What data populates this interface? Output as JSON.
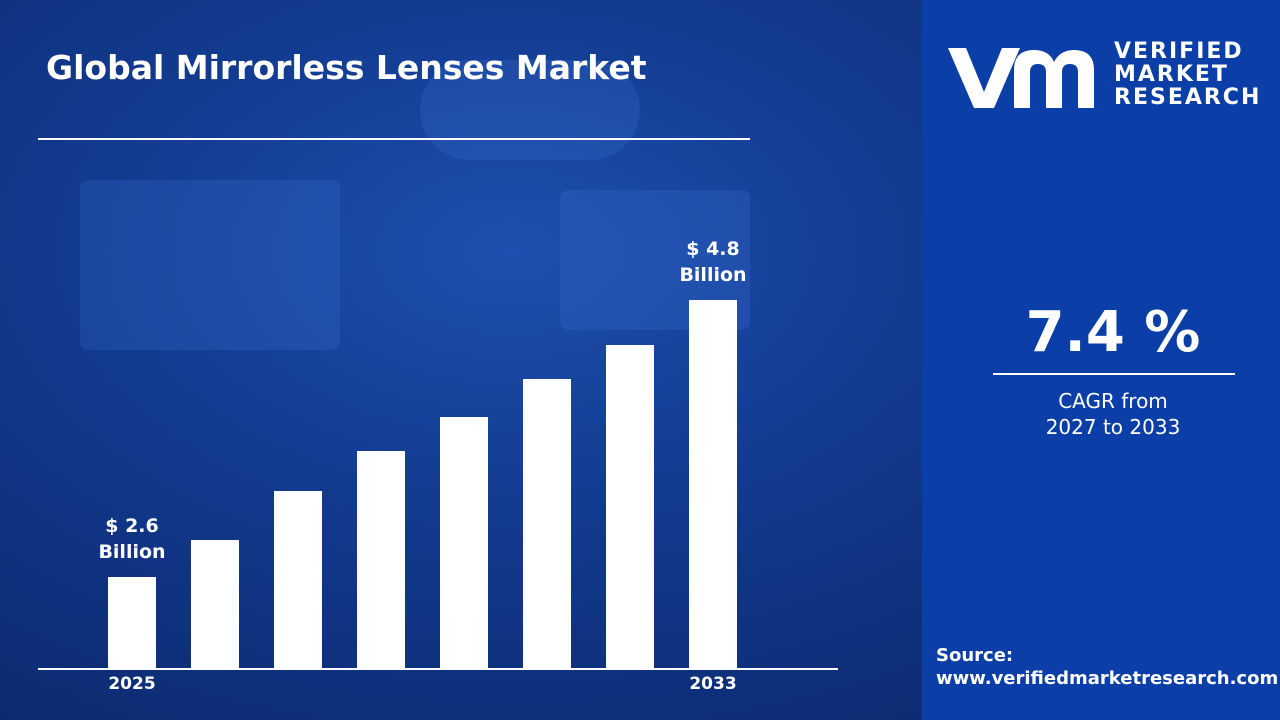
{
  "chart_data": {
    "type": "bar",
    "title": "Global Mirrorless Lenses Market",
    "categories": [
      "2025",
      null,
      null,
      null,
      null,
      null,
      null,
      "2033"
    ],
    "values": [
      2.6,
      2.89,
      3.28,
      3.6,
      3.87,
      4.17,
      4.44,
      4.8
    ],
    "value_labels": [
      "$ 2.6 Billion",
      null,
      null,
      null,
      null,
      null,
      null,
      "$ 4.8 Billion"
    ],
    "color": "#ffffff"
  },
  "sidebar": {
    "logo": [
      "VERIFIED",
      "MARKET",
      "RESEARCH"
    ],
    "cagr": "7.4 %",
    "cagr_label": "CAGR from 2027 to 2033",
    "source_label": "Source:",
    "source_url": "www.verifiedmarketresearch.com"
  }
}
